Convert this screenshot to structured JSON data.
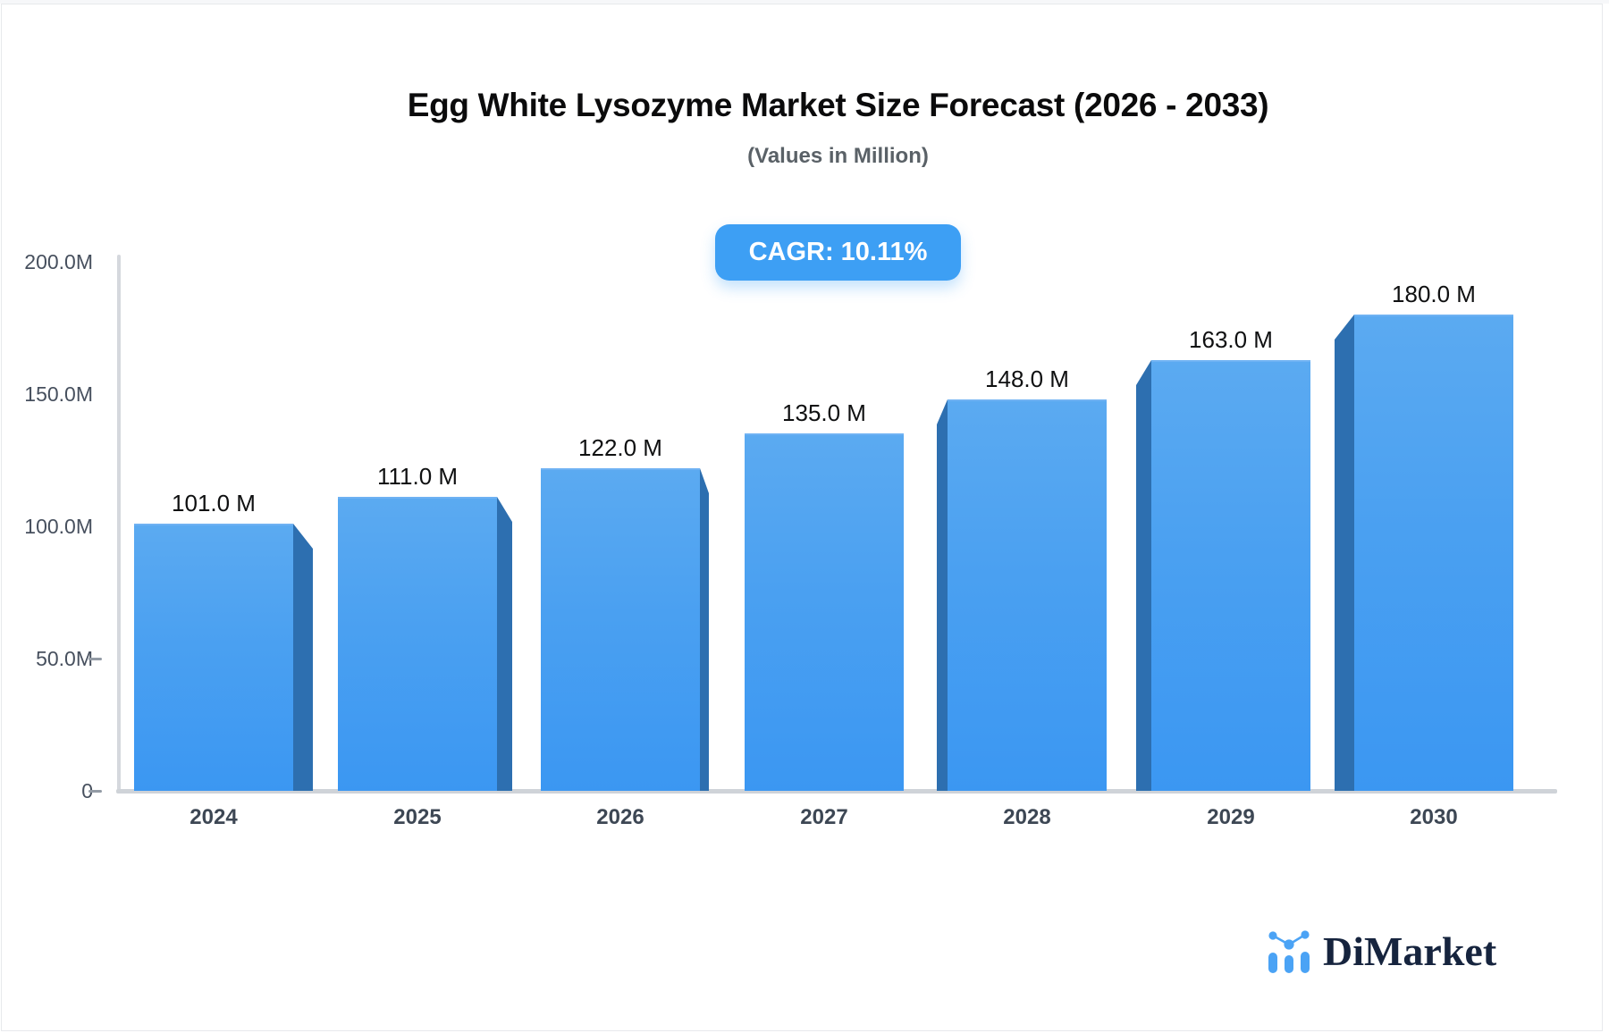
{
  "page": {
    "title": "Egg White Lysozyme Market Size Forecast (2026 - 2033)",
    "subtitle": "(Values in Million)",
    "cagr_label": "CAGR: 10.11%"
  },
  "logo": {
    "text": "DiMarket",
    "icon": "mini-bar-chart-icon"
  },
  "colors": {
    "bar_gradient_top": "#5BAAF1",
    "bar_gradient_bottom": "#3B97F2",
    "bar_side_3d": "#2D6FB0",
    "bar_top_edge": "#6FB2F3",
    "badge_bg": "#3D9FF4",
    "badge_text": "#FFFFFF",
    "y_axis_line": "#D5D8DD",
    "x_axis_line": "#CFD3D8",
    "y_label": "#47505E",
    "x_label": "#3D4754",
    "title": "#0B0B0C",
    "subtitle": "#5A6167",
    "value_label": "#0F1011",
    "logo_navy": "#16243E",
    "logo_blue": "#4BA3F5"
  },
  "chart_data": {
    "type": "bar",
    "title": "Egg White Lysozyme Market Size Forecast (2026 - 2033)",
    "subtitle": "(Values in Million)",
    "annotation": "CAGR: 10.11%",
    "unit": "Million (M)",
    "categories": [
      "2024",
      "2025",
      "2026",
      "2027",
      "2028",
      "2029",
      "2030"
    ],
    "values": [
      101.0,
      111.0,
      122.0,
      135.0,
      148.0,
      163.0,
      180.0
    ],
    "value_labels": [
      "101.0 M",
      "111.0 M",
      "122.0 M",
      "135.0 M",
      "148.0 M",
      "163.0 M",
      "180.0 M"
    ],
    "ylim": [
      0,
      200
    ],
    "ytick_values": [
      0,
      50,
      100,
      150,
      200
    ],
    "ytick_labels": [
      "0",
      "50.0M",
      "100.0M",
      "150.0M",
      "200.0M"
    ],
    "yticks_with_dash": [
      0,
      50
    ],
    "grid": false,
    "legend": false,
    "bar_style": "3d-extruded-toward-center"
  }
}
